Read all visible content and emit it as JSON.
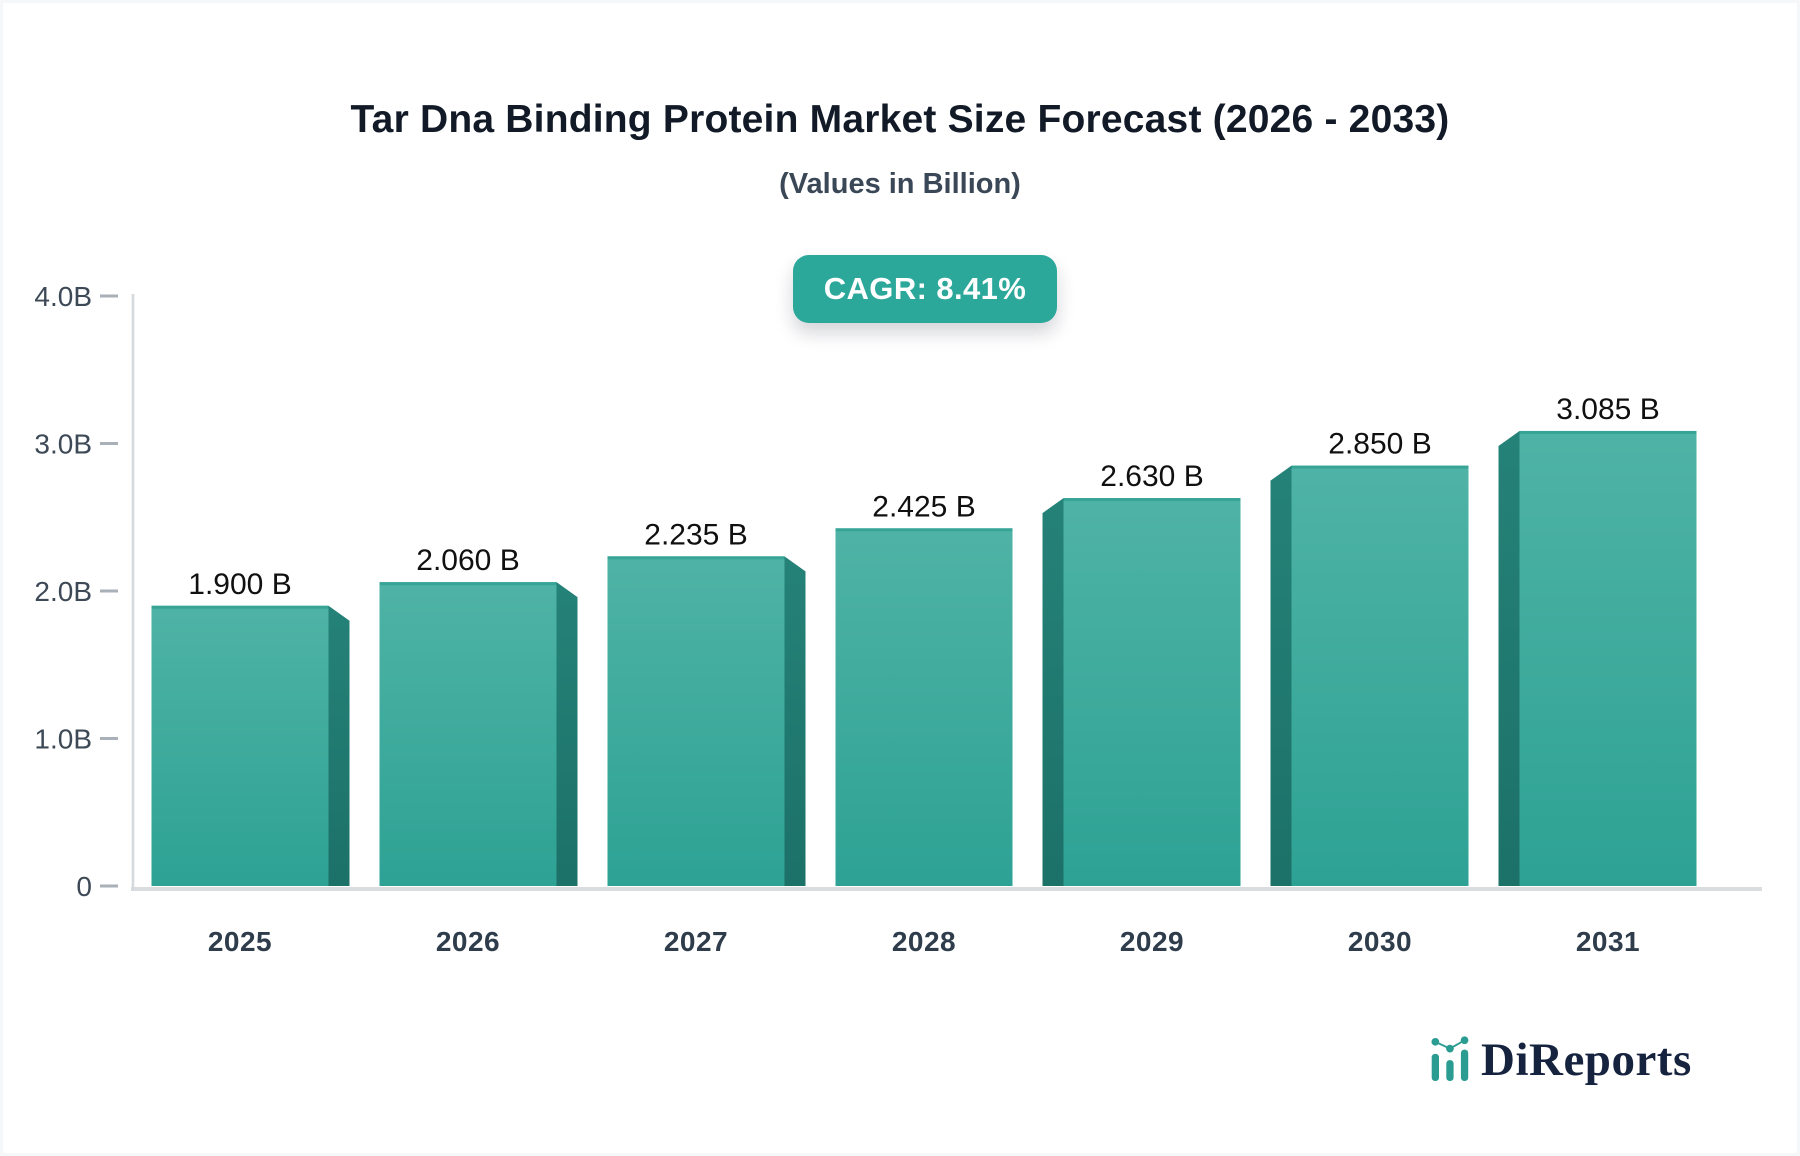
{
  "chart_data": {
    "type": "bar",
    "title": "Tar Dna Binding Protein Market Size Forecast (2026 - 2033)",
    "subtitle": "(Values in Billion)",
    "cagr_label": "CAGR: 8.41%",
    "categories": [
      "2025",
      "2026",
      "2027",
      "2028",
      "2029",
      "2030",
      "2031"
    ],
    "values": [
      1.9,
      2.06,
      2.235,
      2.425,
      2.63,
      2.85,
      3.085
    ],
    "value_labels": [
      "1.900 B",
      "2.060 B",
      "2.235 B",
      "2.425 B",
      "2.630 B",
      "2.850 B",
      "3.085 B"
    ],
    "xlabel": "",
    "ylabel": "",
    "ylim": [
      0,
      4
    ],
    "y_ticks": [
      {
        "value": 0,
        "label": "0"
      },
      {
        "value": 1.0,
        "label": "1.0B"
      },
      {
        "value": 2.0,
        "label": "2.0B"
      },
      {
        "value": 3.0,
        "label": "3.0B"
      },
      {
        "value": 4.0,
        "label": "4.0B"
      }
    ],
    "grid": "off",
    "legend": "none",
    "bar_style": "3d-beveled"
  },
  "branding": {
    "logo_text": "DiReports",
    "logo_icon": "mini-bar-chart-icon"
  },
  "colors": {
    "title": "#111a26",
    "subtitle": "#3a4756",
    "badge_bg": "#2ca89b",
    "badge_text": "#ffffff",
    "bar_face_top": "#4fb3a6",
    "bar_face_bottom": "#2da294",
    "bar_top_edge": "#35a295",
    "bar_side_top": "#258278",
    "bar_side_bottom": "#1c7168",
    "axis_line": "#d6d9dd",
    "baseline": "#dadce0",
    "tick_dash": "#a9b0b8",
    "y_label": "#3d4956",
    "x_label": "#2e3c4b",
    "value_label": "#101010",
    "logo_text": "#16233f",
    "logo_teal": "#2b9c91"
  }
}
